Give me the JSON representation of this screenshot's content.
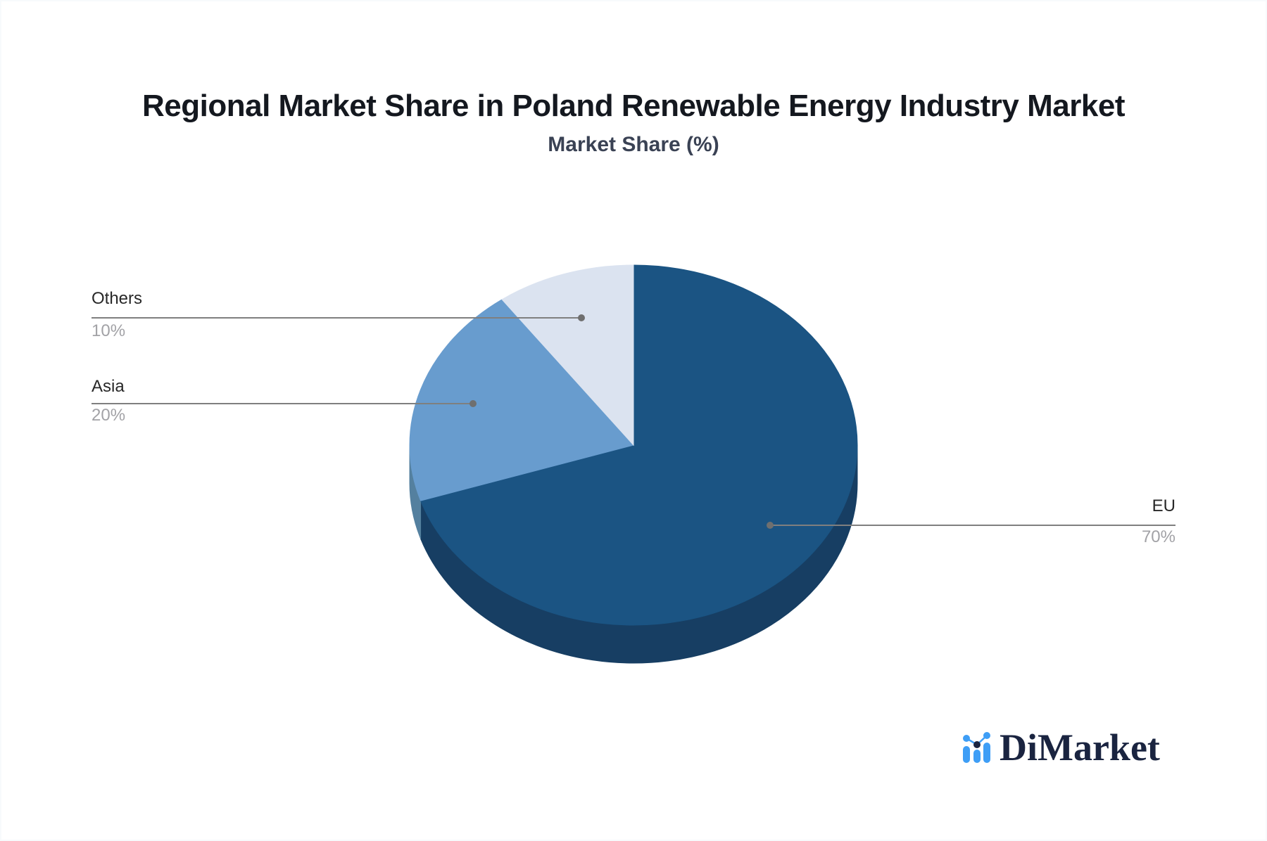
{
  "header": {
    "title": "Regional Market Share in Poland Renewable Energy Industry Market",
    "subtitle": "Market Share (%)",
    "title_color": "#14181f",
    "subtitle_color": "#3a4254"
  },
  "chart_data": {
    "type": "pie",
    "style": "3d",
    "unit": "%",
    "start_angle_deg": 0,
    "direction": "clockwise",
    "series": [
      {
        "label": "EU",
        "value": 70,
        "display_value": "70%",
        "color": "#1b5483",
        "side_color": "#173e63"
      },
      {
        "label": "Asia",
        "value": 20,
        "display_value": "20%",
        "color": "#689cce",
        "side_color": "#54809f"
      },
      {
        "label": "Others",
        "value": 10,
        "display_value": "10%",
        "color": "#dbe3f0",
        "side_color": "#c2cce0"
      }
    ],
    "legend_position": "callout-labels",
    "label_text_color": "#282828",
    "value_text_color": "#a2a2a6",
    "leader_line_color": "#7f7f7f",
    "leader_dot_color": "#6f6f6f"
  },
  "logo": {
    "text": "DiMarket",
    "icon": "bar-chart-logo-icon",
    "icon_color": "#3e9ef6",
    "icon_dark_dot_color": "#1a2440",
    "text_color": "#1a2440"
  }
}
